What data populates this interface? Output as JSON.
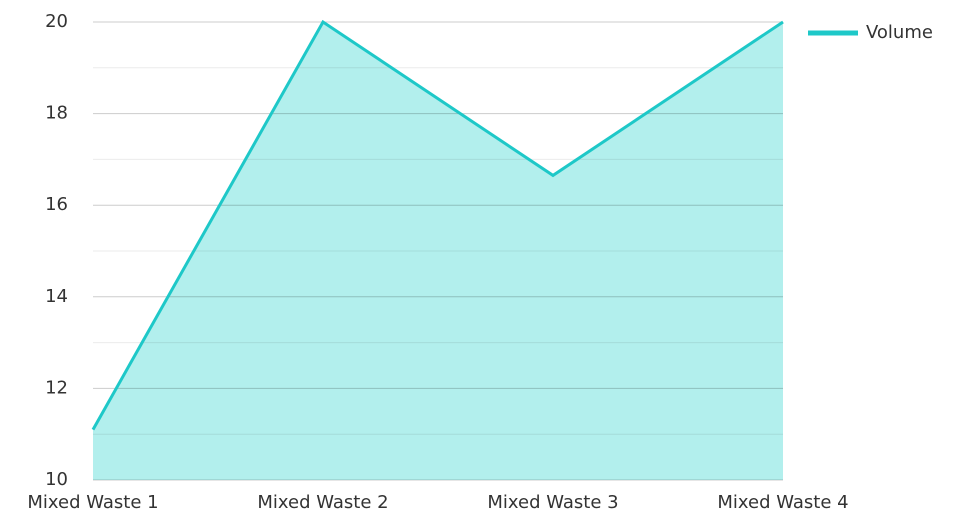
{
  "chart_data": {
    "type": "area",
    "categories": [
      "Mixed Waste 1",
      "Mixed Waste 2",
      "Mixed Waste 3",
      "Mixed Waste 4"
    ],
    "series": [
      {
        "name": "Volume",
        "color": "#1ec8c8",
        "fill": "#b2efed",
        "values": [
          11.1,
          20,
          16.65,
          20
        ]
      }
    ],
    "ylim": [
      10,
      20
    ],
    "yticks": [
      10,
      12,
      14,
      16,
      18,
      20
    ],
    "minor_yticks": [
      11,
      13,
      15,
      17,
      19
    ],
    "grid": true,
    "legend": "top-right"
  }
}
